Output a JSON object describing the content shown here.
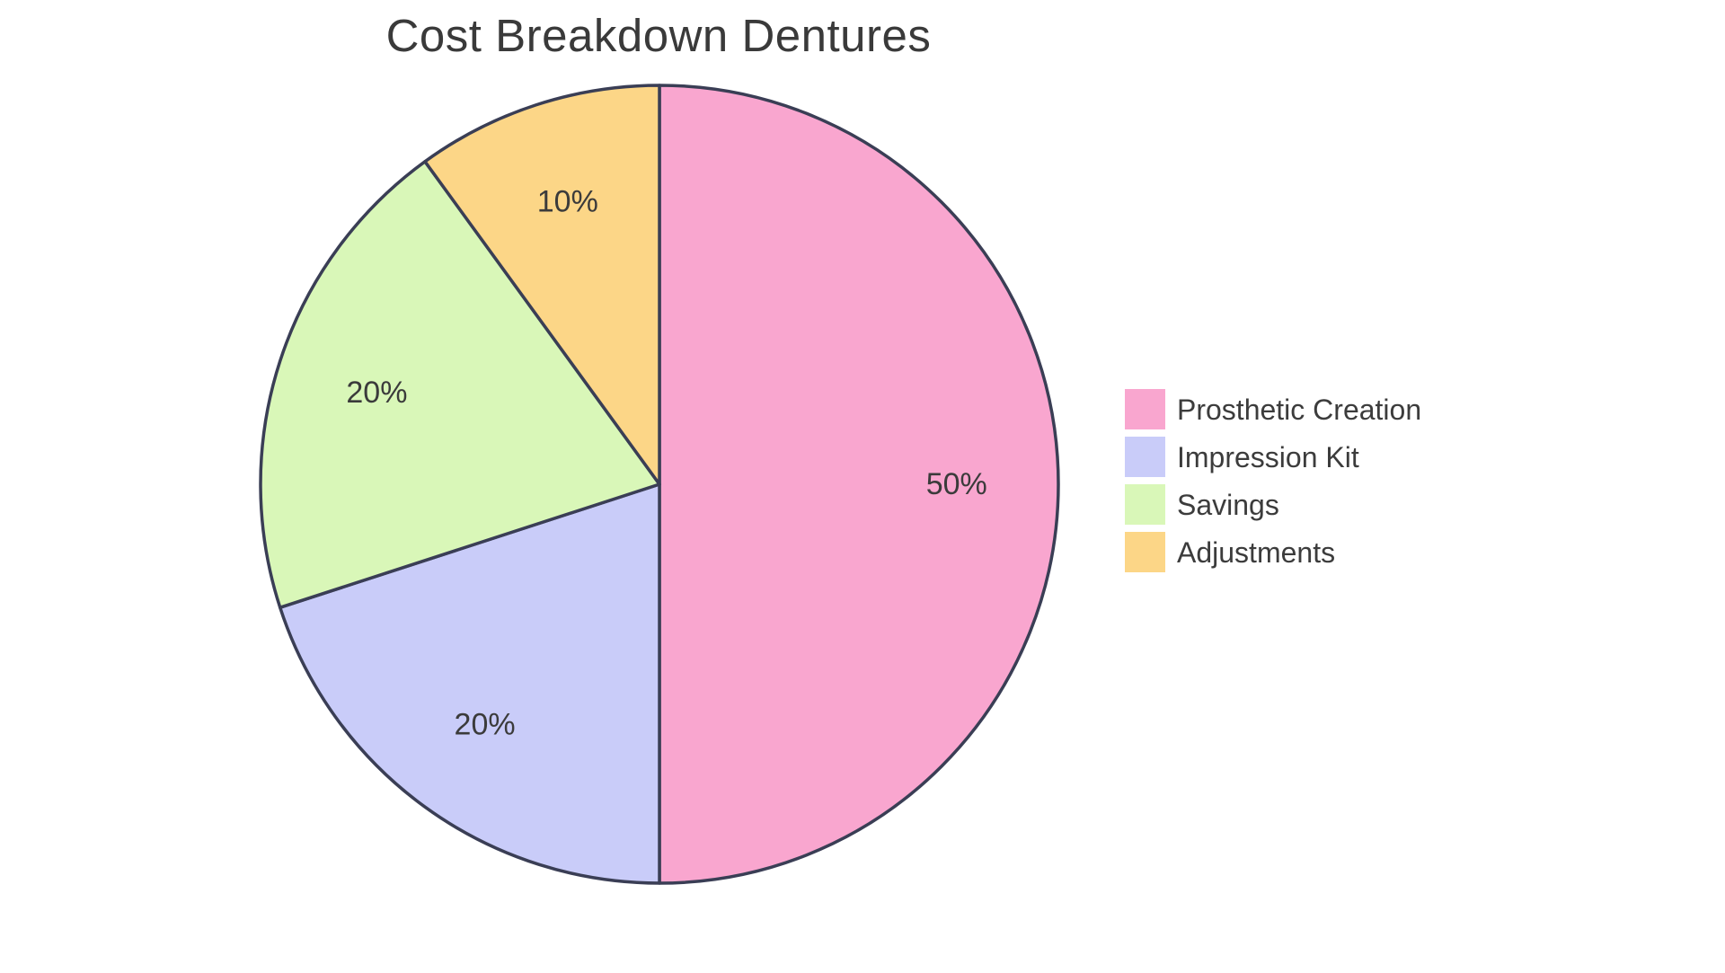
{
  "page": {
    "background_color": "#FFFFFF"
  },
  "chart_data": {
    "type": "pie",
    "title": "Cost Breakdown Dentures",
    "legend_position": "right",
    "start_angle_deg": 0,
    "direction": "clockwise",
    "stroke_color": "#3A3E55",
    "title_color": "#3A3A3A",
    "label_color": "#3B3B3B",
    "slices": [
      {
        "label": "Prosthetic Creation",
        "value": 50,
        "pct_label": "50%",
        "color": "#F9A6CF"
      },
      {
        "label": "Impression Kit",
        "value": 20,
        "pct_label": "20%",
        "color": "#C9CCF9"
      },
      {
        "label": "Savings",
        "value": 20,
        "pct_label": "20%",
        "color": "#D9F7B8"
      },
      {
        "label": "Adjustments",
        "value": 10,
        "pct_label": "10%",
        "color": "#FCD687"
      }
    ]
  }
}
